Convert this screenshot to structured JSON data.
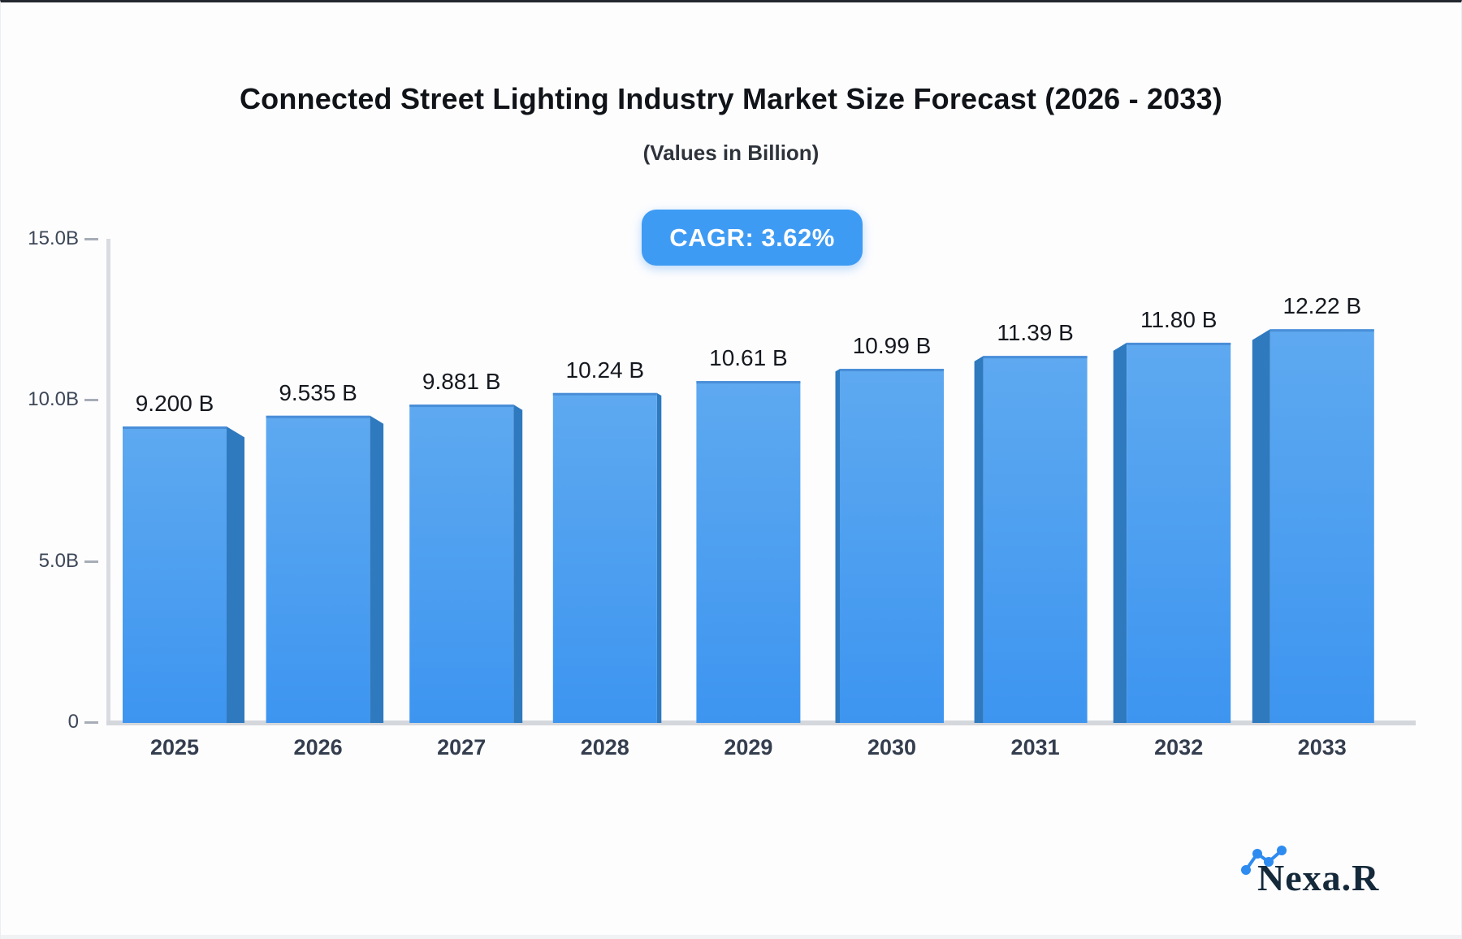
{
  "header": {
    "title": "Connected Street Lighting Industry Market Size Forecast (2026 - 2033)",
    "subtitle": "(Values in Billion)"
  },
  "badge": {
    "label": "CAGR: 3.62%"
  },
  "watermark": {
    "brand": "Nexa.R",
    "icon": "zigzag-line-chart-icon"
  },
  "chart_data": {
    "type": "bar",
    "title": "Connected Street Lighting Industry Market Size Forecast (2026 - 2033)",
    "subtitle": "(Values in Billion)",
    "categories": [
      "2025",
      "2026",
      "2027",
      "2028",
      "2029",
      "2030",
      "2031",
      "2032",
      "2033"
    ],
    "values": [
      9.2,
      9.535,
      9.881,
      10.24,
      10.61,
      10.99,
      11.39,
      11.8,
      12.22
    ],
    "value_labels": [
      "9.200 B",
      "9.535 B",
      "9.881 B",
      "10.24 B",
      "10.61 B",
      "10.99 B",
      "11.39 B",
      "11.80 B",
      "12.22 B"
    ],
    "xlabel": "",
    "ylabel": "",
    "ylim": [
      0,
      15
    ],
    "yticks": [
      {
        "label": "15.0B",
        "value": 15
      },
      {
        "label": "10.0B",
        "value": 10
      },
      {
        "label": "5.0B",
        "value": 5
      },
      {
        "label": "0",
        "value": 0
      }
    ],
    "grid": false,
    "legend": "none",
    "bar_style": "3d-perspective-center-vanishing",
    "colors": {
      "bar_top": "#5EA9F0",
      "bar_bottom": "#3D95F0",
      "bar_side": "#2F79BE",
      "bar_edge": "#4A8ED8",
      "axis_line": "#D8DBE0",
      "tick_dash": "#A7ADB7",
      "tick_label": "#3D4757",
      "value_label": "#15191F",
      "category_label": "#343E4E",
      "badge_bg": "#3E9BF4",
      "badge_text": "#FFFFFF",
      "logo_text": "#14293A",
      "logo_icon": "#2E8BEF"
    }
  }
}
